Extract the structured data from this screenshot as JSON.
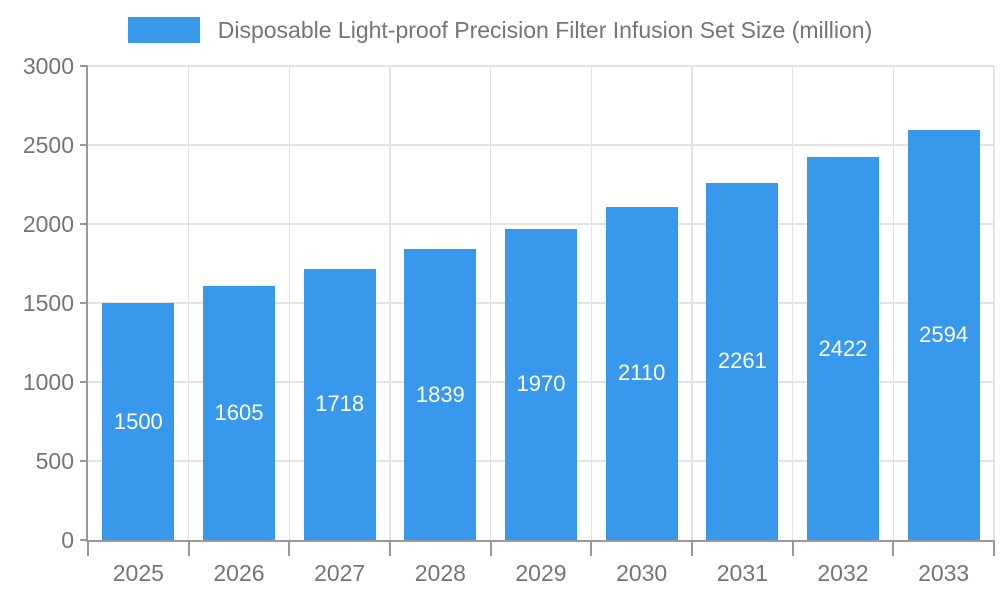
{
  "chart_data": {
    "type": "bar",
    "title": "Disposable Light-proof Precision Filter Infusion Set Size (million)",
    "categories": [
      "2025",
      "2026",
      "2027",
      "2028",
      "2029",
      "2030",
      "2031",
      "2032",
      "2033"
    ],
    "values": [
      1500,
      1605,
      1718,
      1839,
      1970,
      2110,
      2261,
      2422,
      2594
    ],
    "xlabel": "",
    "ylabel": "",
    "ylim": [
      0,
      3000
    ],
    "yticks": [
      0,
      500,
      1000,
      1500,
      2000,
      2500,
      3000
    ],
    "grid": true,
    "legend_position": "top",
    "bar_label_position": "inside-middle",
    "colors": {
      "bar": "#3899EC",
      "bar_label": "#FFFFFF",
      "axis_text": "#757575",
      "axis_line": "#999999",
      "gridline": "#E4E4E4",
      "background": "#FFFFFF"
    }
  }
}
